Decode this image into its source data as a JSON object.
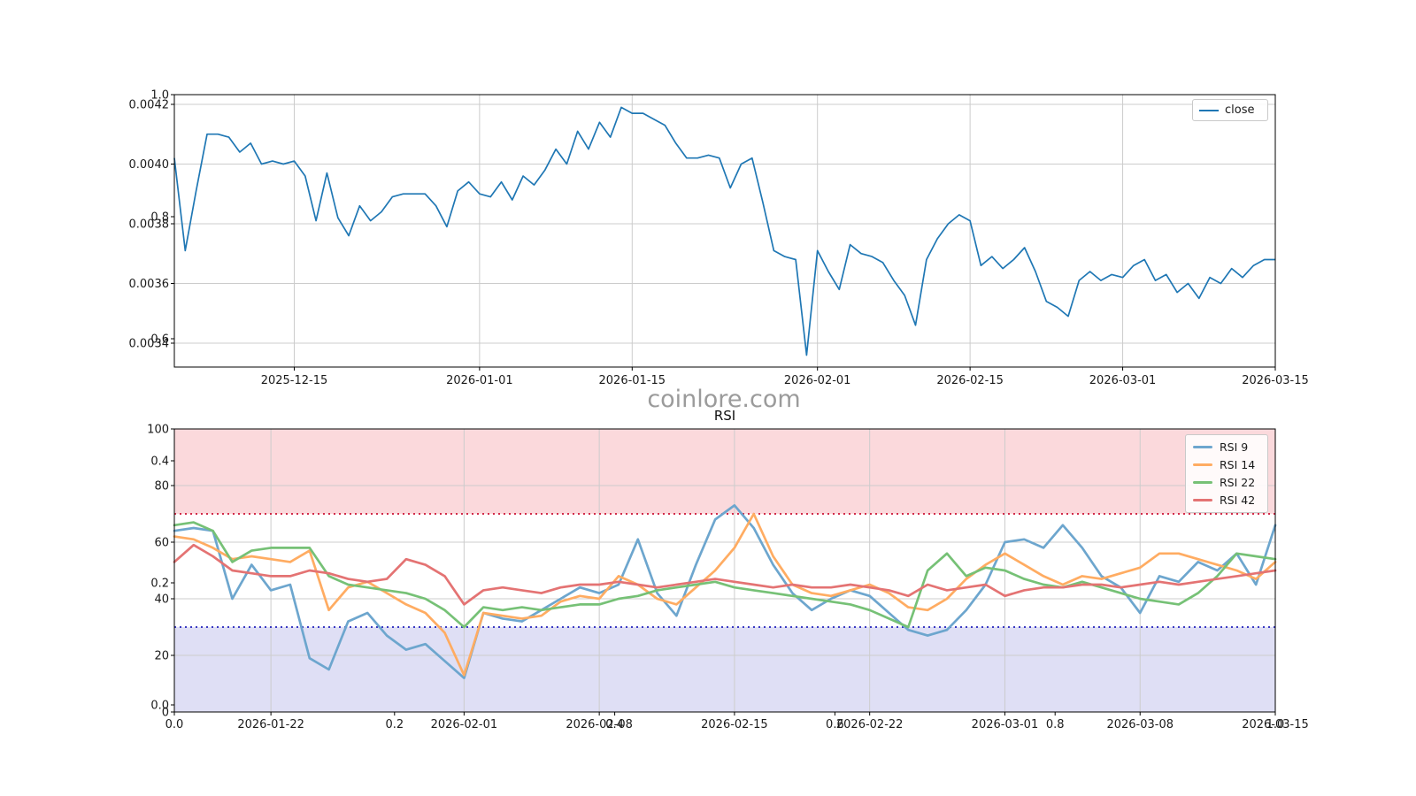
{
  "watermark": "coinlore.com",
  "rsi_title": "RSI",
  "overlay_axis": {
    "xticks": [
      "0.0",
      "0.2",
      "0.4",
      "0.6",
      "0.8",
      "1.0"
    ],
    "yticks": [
      "1.0",
      "0.8",
      "0.6",
      "0.4",
      "0.2",
      "0.0"
    ]
  },
  "colors": {
    "grid": "#cccccc",
    "spine": "#000000",
    "tick_label": "#1a1a1a",
    "watermark": "#9b9b9b",
    "overbought_band": "#fbd9dc",
    "oversold_band": "#dfdff5",
    "overbought_line": "#cc1133",
    "oversold_line": "#2020bb"
  },
  "chart_data": [
    {
      "type": "line",
      "name": "price-panel",
      "legend_position": "upper right",
      "grid": true,
      "ylim": [
        0.00332,
        0.004233
      ],
      "yticks": [
        0.0042,
        0.004,
        0.0038,
        0.0036,
        0.0034
      ],
      "xticks": [
        "2025-12-15",
        "2026-01-01",
        "2026-01-15",
        "2026-02-01",
        "2026-02-15",
        "2026-03-01",
        "2026-03-15"
      ],
      "x": [
        "2025-12-04",
        "2025-12-05",
        "2025-12-06",
        "2025-12-07",
        "2025-12-08",
        "2025-12-09",
        "2025-12-10",
        "2025-12-11",
        "2025-12-12",
        "2025-12-13",
        "2025-12-14",
        "2025-12-15",
        "2025-12-16",
        "2025-12-17",
        "2025-12-18",
        "2025-12-19",
        "2025-12-20",
        "2025-12-21",
        "2025-12-22",
        "2025-12-23",
        "2025-12-24",
        "2025-12-25",
        "2025-12-26",
        "2025-12-27",
        "2025-12-28",
        "2025-12-29",
        "2025-12-30",
        "2025-12-31",
        "2026-01-01",
        "2026-01-02",
        "2026-01-03",
        "2026-01-04",
        "2026-01-05",
        "2026-01-06",
        "2026-01-07",
        "2026-01-08",
        "2026-01-09",
        "2026-01-10",
        "2026-01-11",
        "2026-01-12",
        "2026-01-13",
        "2026-01-14",
        "2026-01-15",
        "2026-01-16",
        "2026-01-17",
        "2026-01-18",
        "2026-01-19",
        "2026-01-20",
        "2026-01-21",
        "2026-01-22",
        "2026-01-23",
        "2026-01-24",
        "2026-01-25",
        "2026-01-26",
        "2026-01-27",
        "2026-01-28",
        "2026-01-29",
        "2026-01-30",
        "2026-01-31",
        "2026-02-01",
        "2026-02-02",
        "2026-02-03",
        "2026-02-04",
        "2026-02-05",
        "2026-02-06",
        "2026-02-07",
        "2026-02-08",
        "2026-02-09",
        "2026-02-10",
        "2026-02-11",
        "2026-02-12",
        "2026-02-13",
        "2026-02-14",
        "2026-02-15",
        "2026-02-16",
        "2026-02-17",
        "2026-02-18",
        "2026-02-19",
        "2026-02-20",
        "2026-02-21",
        "2026-02-22",
        "2026-02-23",
        "2026-02-24",
        "2026-02-25",
        "2026-02-26",
        "2026-02-27",
        "2026-02-28",
        "2026-03-01",
        "2026-03-02",
        "2026-03-03",
        "2026-03-04",
        "2026-03-05",
        "2026-03-06",
        "2026-03-07",
        "2026-03-08",
        "2026-03-09",
        "2026-03-10",
        "2026-03-11",
        "2026-03-12",
        "2026-03-13",
        "2026-03-14",
        "2026-03-15"
      ],
      "series": [
        {
          "name": "close",
          "color": "#1f77b4",
          "values": [
            0.00402,
            0.00371,
            0.00391,
            0.0041,
            0.0041,
            0.00409,
            0.00404,
            0.00407,
            0.004,
            0.00401,
            0.004,
            0.00401,
            0.00396,
            0.00381,
            0.00397,
            0.00382,
            0.00376,
            0.00386,
            0.00381,
            0.00384,
            0.00389,
            0.0039,
            0.0039,
            0.0039,
            0.00386,
            0.00379,
            0.00391,
            0.00394,
            0.0039,
            0.00389,
            0.00394,
            0.00388,
            0.00396,
            0.00393,
            0.00398,
            0.00405,
            0.004,
            0.00411,
            0.00405,
            0.00414,
            0.00409,
            0.00419,
            0.00417,
            0.00417,
            0.00415,
            0.00413,
            0.00407,
            0.00402,
            0.00402,
            0.00403,
            0.00402,
            0.00392,
            0.004,
            0.00402,
            0.00387,
            0.00371,
            0.00369,
            0.00368,
            0.00336,
            0.00371,
            0.00364,
            0.00358,
            0.00373,
            0.0037,
            0.00369,
            0.00367,
            0.00361,
            0.00356,
            0.00346,
            0.00368,
            0.00375,
            0.0038,
            0.00383,
            0.00381,
            0.00366,
            0.00369,
            0.00365,
            0.00368,
            0.00372,
            0.00364,
            0.00354,
            0.00352,
            0.00349,
            0.00361,
            0.00364,
            0.00361,
            0.00363,
            0.00362,
            0.00366,
            0.00368,
            0.00361,
            0.00363,
            0.00357,
            0.0036,
            0.00355,
            0.00362,
            0.0036,
            0.00365,
            0.00362,
            0.00366,
            0.00368,
            0.00368
          ]
        }
      ]
    },
    {
      "type": "line",
      "name": "rsi-panel",
      "title": "RSI",
      "legend_position": "upper right",
      "grid": true,
      "ylim": [
        0,
        100
      ],
      "yticks": [
        100,
        80,
        60,
        40,
        20,
        0
      ],
      "bands": [
        {
          "from": 70,
          "to": 100,
          "color": "#fbd9dc",
          "name": "overbought"
        },
        {
          "from": 0,
          "to": 30,
          "color": "#dfdff5",
          "name": "oversold"
        }
      ],
      "hlines": [
        {
          "value": 70,
          "color": "#cc1133",
          "style": "dotted"
        },
        {
          "value": 30,
          "color": "#2020bb",
          "style": "dotted"
        }
      ],
      "xticks": [
        "2026-01-22",
        "2026-02-01",
        "2026-02-08",
        "2026-02-15",
        "2026-02-22",
        "2026-03-01",
        "2026-03-08",
        "2026-03-15"
      ],
      "x": [
        "2026-01-17",
        "2026-01-18",
        "2026-01-19",
        "2026-01-20",
        "2026-01-21",
        "2026-01-22",
        "2026-01-23",
        "2026-01-24",
        "2026-01-25",
        "2026-01-26",
        "2026-01-27",
        "2026-01-28",
        "2026-01-29",
        "2026-01-30",
        "2026-01-31",
        "2026-02-01",
        "2026-02-02",
        "2026-02-03",
        "2026-02-04",
        "2026-02-05",
        "2026-02-06",
        "2026-02-07",
        "2026-02-08",
        "2026-02-09",
        "2026-02-10",
        "2026-02-11",
        "2026-02-12",
        "2026-02-13",
        "2026-02-14",
        "2026-02-15",
        "2026-02-16",
        "2026-02-17",
        "2026-02-18",
        "2026-02-19",
        "2026-02-20",
        "2026-02-21",
        "2026-02-22",
        "2026-02-23",
        "2026-02-24",
        "2026-02-25",
        "2026-02-26",
        "2026-02-27",
        "2026-02-28",
        "2026-03-01",
        "2026-03-02",
        "2026-03-03",
        "2026-03-04",
        "2026-03-05",
        "2026-03-06",
        "2026-03-07",
        "2026-03-08",
        "2026-03-09",
        "2026-03-10",
        "2026-03-11",
        "2026-03-12",
        "2026-03-13",
        "2026-03-14",
        "2026-03-15"
      ],
      "series": [
        {
          "name": "RSI 9",
          "color": "#6da6ce",
          "values": [
            64,
            65,
            64,
            40,
            52,
            43,
            45,
            19,
            15,
            32,
            35,
            27,
            22,
            24,
            18,
            12,
            35,
            33,
            32,
            36,
            40,
            44,
            42,
            45,
            61,
            42,
            34,
            52,
            68,
            73,
            65,
            52,
            42,
            36,
            40,
            43,
            41,
            35,
            29,
            27,
            29,
            36,
            45,
            60,
            61,
            58,
            66,
            58,
            48,
            44,
            35,
            48,
            46,
            53,
            50,
            56,
            45,
            66
          ]
        },
        {
          "name": "RSI 14",
          "color": "#ffac62",
          "values": [
            62,
            61,
            58,
            54,
            55,
            54,
            53,
            57,
            36,
            44,
            46,
            42,
            38,
            35,
            28,
            13,
            35,
            34,
            33,
            34,
            39,
            41,
            40,
            48,
            45,
            40,
            38,
            44,
            50,
            58,
            70,
            55,
            45,
            42,
            41,
            43,
            45,
            42,
            37,
            36,
            40,
            47,
            52,
            56,
            52,
            48,
            45,
            48,
            47,
            49,
            51,
            56,
            56,
            54,
            52,
            50,
            47,
            53
          ]
        },
        {
          "name": "RSI 22",
          "color": "#76c176",
          "values": [
            66,
            67,
            64,
            53,
            57,
            58,
            58,
            58,
            48,
            45,
            44,
            43,
            42,
            40,
            36,
            30,
            37,
            36,
            37,
            36,
            37,
            38,
            38,
            40,
            41,
            43,
            44,
            45,
            46,
            44,
            43,
            42,
            41,
            40,
            39,
            38,
            36,
            33,
            30,
            50,
            56,
            48,
            51,
            50,
            47,
            45,
            44,
            46,
            44,
            42,
            40,
            39,
            38,
            42,
            48,
            56,
            55,
            54
          ]
        },
        {
          "name": "RSI 42",
          "color": "#e47373",
          "values": [
            53,
            59,
            55,
            50,
            49,
            48,
            48,
            50,
            49,
            47,
            46,
            47,
            54,
            52,
            48,
            38,
            43,
            44,
            43,
            42,
            44,
            45,
            45,
            46,
            45,
            44,
            45,
            46,
            47,
            46,
            45,
            44,
            45,
            44,
            44,
            45,
            44,
            43,
            41,
            45,
            43,
            44,
            45,
            41,
            43,
            44,
            44,
            45,
            45,
            44,
            45,
            46,
            45,
            46,
            47,
            48,
            49,
            50
          ]
        }
      ]
    }
  ]
}
